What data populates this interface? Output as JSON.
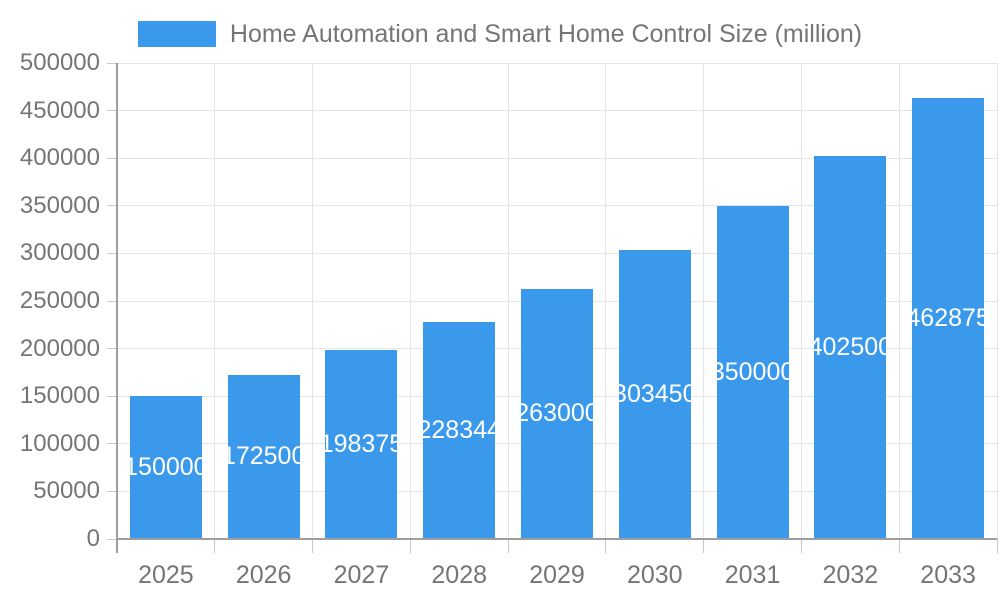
{
  "legend": {
    "series_label": "Home Automation and Smart Home Control Size (million)",
    "swatch_color": "#3B99EC"
  },
  "chart_data": {
    "type": "bar",
    "title": "Home Automation and Smart Home Control Size (million)",
    "categories": [
      "2025",
      "2026",
      "2027",
      "2028",
      "2029",
      "2030",
      "2031",
      "2032",
      "2033"
    ],
    "values": [
      150000,
      172500,
      198375,
      228344,
      263000,
      303450,
      350000,
      402500,
      462875
    ],
    "value_labels": [
      "150000",
      "172500",
      "198375",
      "228344",
      "263000",
      "303450",
      "350000",
      "402500",
      "462875"
    ],
    "xlabel": "",
    "ylabel": "",
    "ylim": [
      0,
      500000
    ],
    "ytick_step": 50000,
    "ytick_labels": [
      "0",
      "50000",
      "100000",
      "150000",
      "200000",
      "250000",
      "300000",
      "350000",
      "400000",
      "450000",
      "500000"
    ],
    "legend_position": "top-center",
    "grid": true,
    "value_labels_position": "inside-center",
    "colors": {
      "bar": "#3B99EC",
      "value_label": "#FFFFFF",
      "axis_text": "#757575",
      "grid_line": "#E5E5E5",
      "axis_line": "#9E9E9E",
      "tick": "#C9C9C9",
      "background": "#FFFFFF"
    }
  }
}
